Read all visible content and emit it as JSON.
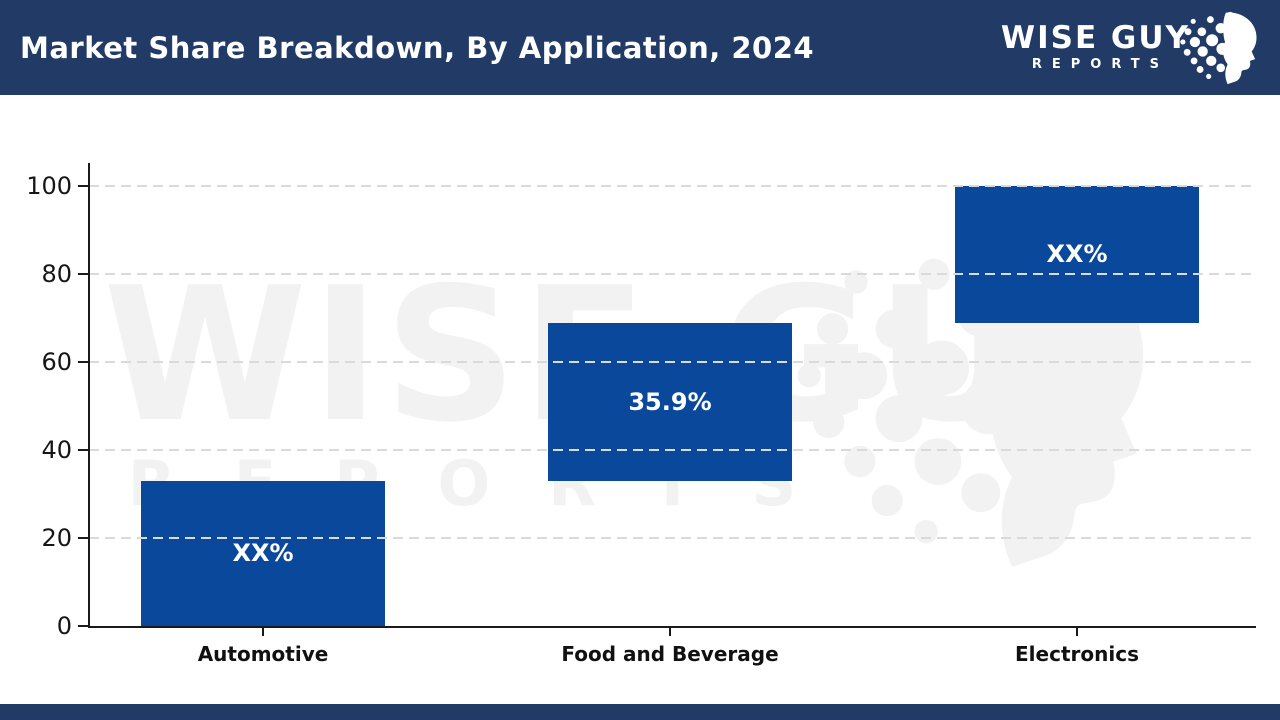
{
  "header": {
    "title": "Market Share Breakdown, By Application, 2024",
    "logo": {
      "line1": "WISE GUY",
      "line2": "REPORTS"
    }
  },
  "watermark": {
    "line1": "WISE GUY",
    "line2": "REPORTS"
  },
  "chart_data": {
    "type": "bar",
    "subtype": "waterfall",
    "title": "Market Share Breakdown, By Application, 2024",
    "categories": [
      "Automotive",
      "Food and Beverage",
      "Electronics"
    ],
    "bars": [
      {
        "category": "Automotive",
        "start": 0,
        "end": 33,
        "label": "XX%"
      },
      {
        "category": "Food and Beverage",
        "start": 33,
        "end": 68.9,
        "label": "35.9%"
      },
      {
        "category": "Electronics",
        "start": 68.9,
        "end": 100,
        "label": "XX%"
      }
    ],
    "y_ticks": [
      0,
      20,
      40,
      60,
      80,
      100
    ],
    "ylim": [
      0,
      100
    ],
    "grid": "horizontal-dashed",
    "legend": "none",
    "bar_color": "#0A489B",
    "label_color": "#FFFFFF"
  },
  "colors": {
    "header_bg": "#213A66",
    "footer_bg": "#213A66",
    "bar": "#0A489B",
    "grid": "#DADADA",
    "axis": "#1A1A1A",
    "watermark": "#F2F2F3"
  }
}
